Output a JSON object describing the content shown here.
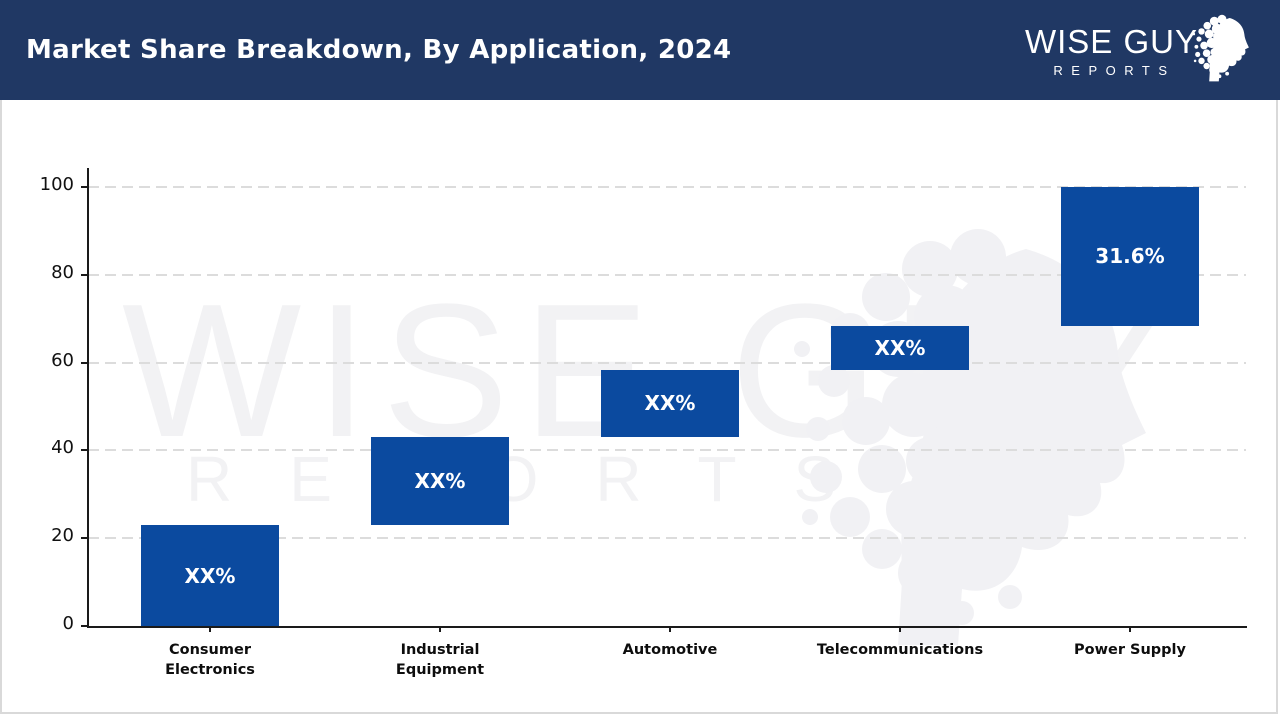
{
  "header": {
    "title": "Market Share Breakdown, By Application, 2024",
    "bg_color": "#203864",
    "logo": {
      "line1": "WISE GUY",
      "line2": "REPORTS"
    }
  },
  "watermark": {
    "line1": "WISE GUY",
    "line2": "REPORTS"
  },
  "chart_data": {
    "type": "bar",
    "subtype": "waterfall",
    "title": "Market Share Breakdown, By Application, 2024",
    "categories": [
      "Consumer Electronics",
      "Industrial Equipment",
      "Automotive",
      "Telecommunications",
      "Power Supply"
    ],
    "category_display_lines": [
      "Consumer\nElectronics",
      "Industrial\nEquipment",
      "Automotive",
      "Telecommunications",
      "Power Supply"
    ],
    "segments": [
      {
        "category": "Consumer Electronics",
        "start": 0,
        "end": 23,
        "value_label": "XX%"
      },
      {
        "category": "Industrial Equipment",
        "start": 23,
        "end": 43,
        "value_label": "XX%"
      },
      {
        "category": "Automotive",
        "start": 43,
        "end": 58.4,
        "value_label": "XX%"
      },
      {
        "category": "Telecommunications",
        "start": 58.4,
        "end": 68.4,
        "value_label": "XX%"
      },
      {
        "category": "Power Supply",
        "start": 68.4,
        "end": 100,
        "value_label": "31.6%"
      }
    ],
    "ylim": [
      0,
      100
    ],
    "yticks": [
      0,
      20,
      40,
      60,
      80,
      100
    ],
    "grid": "horizontal-dashed",
    "legend": "none",
    "bar_color": "#0b4a9f",
    "bar_label_color": "#ffffff",
    "axis_color": "#1a1a1a",
    "gridline_color": "#dcdcdc",
    "watermark_color": "#f2f2f4"
  }
}
